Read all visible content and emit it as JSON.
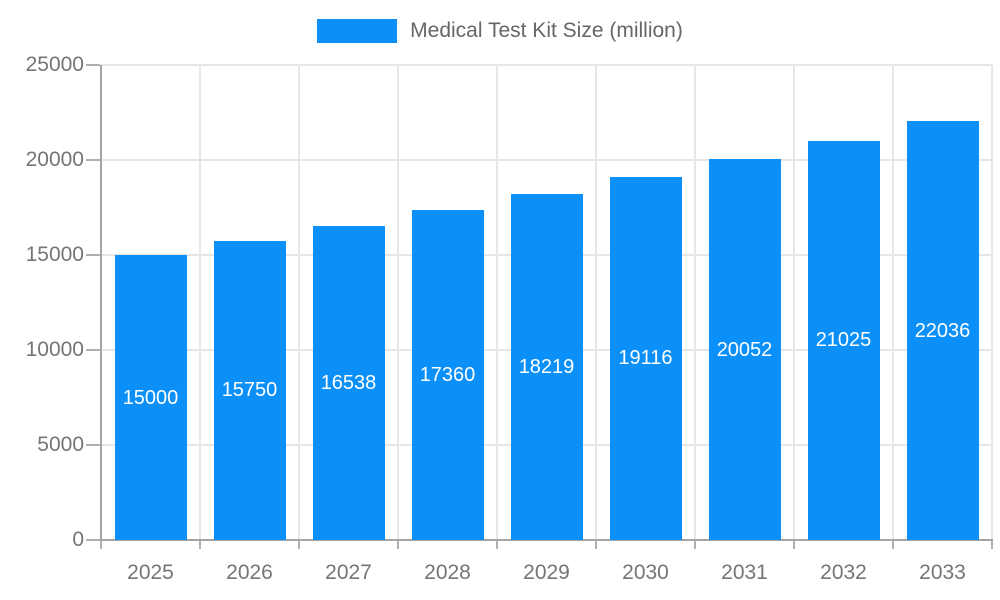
{
  "chart": {
    "style": {
      "bar_color": "#0A90F8",
      "grid_color": "#e6e6e6",
      "axis_color": "#a5a5a5",
      "tick_color": "#b0b0b0",
      "tick_text_color": "#757575",
      "legend_text_color": "#666666",
      "bar_label_color": "#ffffff",
      "background": "#ffffff"
    }
  },
  "chart_data": {
    "type": "bar",
    "title": "Medical Test Kit Size (million)",
    "categories": [
      "2025",
      "2026",
      "2027",
      "2028",
      "2029",
      "2030",
      "2031",
      "2032",
      "2033"
    ],
    "values": [
      15000,
      15750,
      16538,
      17360,
      18219,
      19116,
      20052,
      21025,
      22036
    ],
    "series_name": "Medical Test Kit Size (million)",
    "xlabel": "",
    "ylabel": "",
    "ylim": [
      0,
      25000
    ],
    "yticks": [
      0,
      5000,
      10000,
      15000,
      20000,
      25000
    ],
    "grid": true,
    "legend_position": "top-center",
    "bar_value_labels": "inside-middle"
  }
}
